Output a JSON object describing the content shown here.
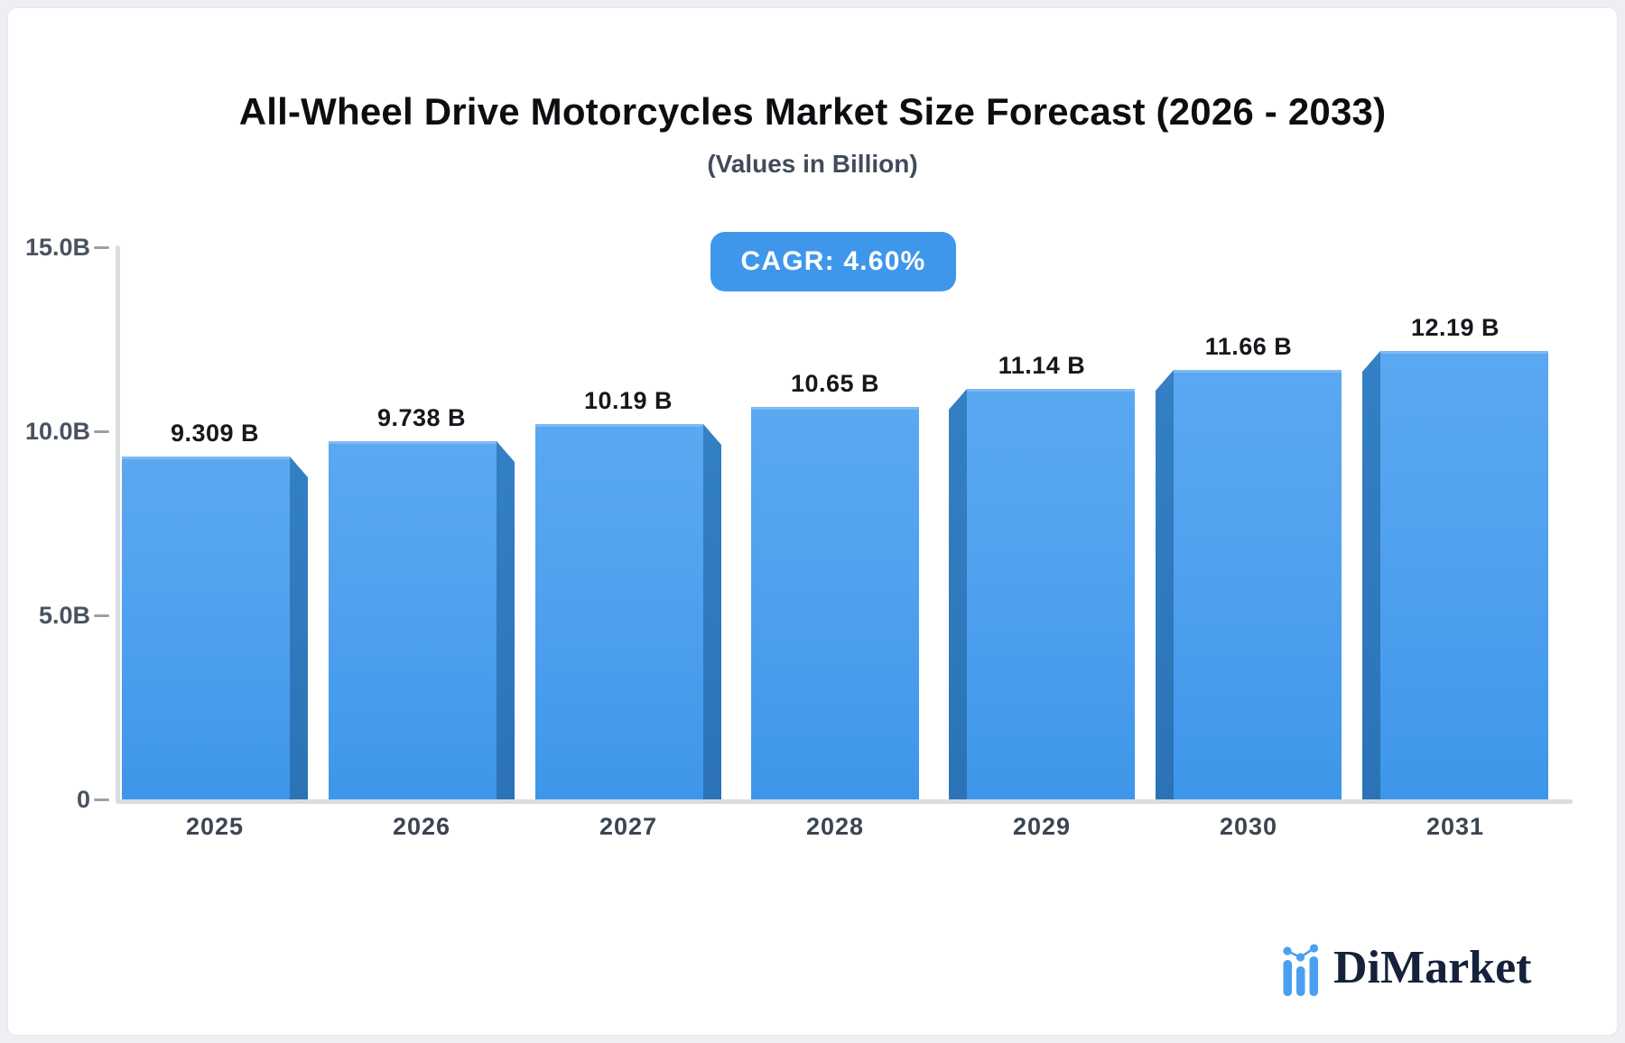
{
  "title": "All-Wheel Drive Motorcycles Market Size Forecast (2026 - 2033)",
  "subtitle": "(Values in Billion)",
  "badge": {
    "label": "CAGR: 4.60%"
  },
  "chart_data": {
    "type": "bar",
    "categories": [
      "2025",
      "2026",
      "2027",
      "2028",
      "2029",
      "2030",
      "2031"
    ],
    "values": [
      9.309,
      9.738,
      10.19,
      10.65,
      11.14,
      11.66,
      12.19
    ],
    "value_labels": [
      "9.309 B",
      "9.738 B",
      "10.19 B",
      "10.65 B",
      "11.14 B",
      "11.66 B",
      "12.19 B"
    ],
    "title": "All-Wheel Drive Motorcycles Market Size Forecast (2026 - 2033)",
    "xlabel": "",
    "ylabel": "",
    "ylim": [
      0,
      15
    ],
    "yticks": [
      {
        "label": "15.0B",
        "value": 15
      },
      {
        "label": "10.0B",
        "value": 10
      },
      {
        "label": "5.0B",
        "value": 5
      },
      {
        "label": "0",
        "value": 0
      }
    ],
    "grid": false,
    "legend": false,
    "bar_style": "3d-perspective-fan"
  },
  "colors": {
    "bar_face_top": "#5ba8f1",
    "bar_face_bottom": "#3e96ea",
    "bar_side": "#2c77bb",
    "badge_bg": "#3e97ea",
    "badge_text": "#ffffff",
    "axis": "#d9dce1",
    "tick_dash": "#9aa1aa",
    "axis_label": "#49525e",
    "title": "#0c0e11",
    "subtitle": "#414b59",
    "logo_text": "#15223a",
    "logo_icon": "#4aa0f0"
  },
  "branding": {
    "name": "DiMarket",
    "icon": "bar-chart-sparkline-icon"
  }
}
